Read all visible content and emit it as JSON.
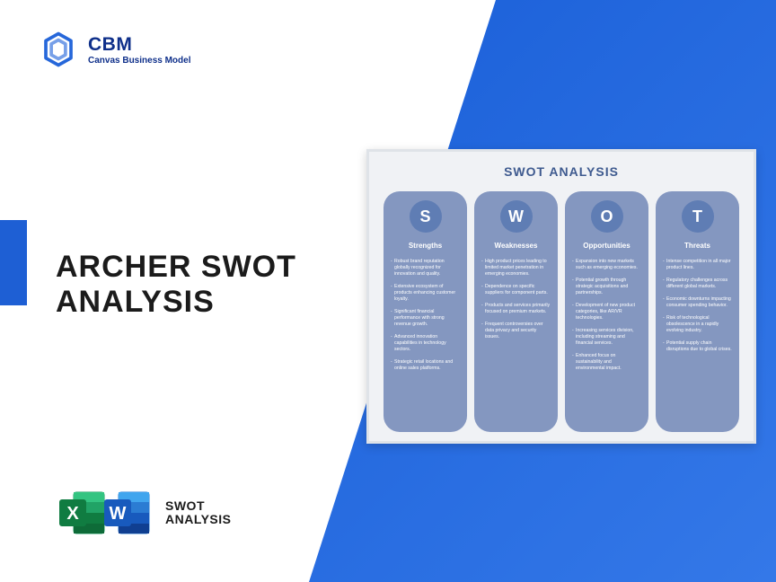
{
  "logo": {
    "main": "CBM",
    "sub": "Canvas Business Model",
    "icon_color": "#1a5fd8"
  },
  "title_line1": "ARCHER SWOT",
  "title_line2": "ANALYSIS",
  "files_label_line1": "SWOT",
  "files_label_line2": "ANALYSIS",
  "excel_icon": {
    "bg": "#1e9e63",
    "fg": "#0d7a47",
    "letter": "X"
  },
  "word_icon": {
    "bg": "#2b7cd3",
    "fg": "#185abd",
    "letter": "W"
  },
  "colors": {
    "diag_start": "#1a5fd8",
    "diag_end": "#3478e8",
    "blue_tab": "#1e5fd4",
    "swot_card_bg": "#f0f2f5",
    "swot_card_border": "#dfe3e8",
    "swot_title_color": "#3e5a8f",
    "swot_col_bg": "#8497c0",
    "swot_badge_bg": "#5f7db4",
    "title_color": "#1b1b1b",
    "logo_text_color": "#0e2f8a"
  },
  "swot": {
    "title": "SWOT ANALYSIS",
    "cols": [
      {
        "letter": "S",
        "heading": "Strengths",
        "items": [
          "Robust brand reputation globally recognized for innovation and quality.",
          "Extensive ecosystem of products enhancing customer loyalty.",
          "Significant financial performance with strong revenue growth.",
          "Advanced innovation capabilities in technology sectors.",
          "Strategic retail locations and online sales platforms."
        ]
      },
      {
        "letter": "W",
        "heading": "Weaknesses",
        "items": [
          "High product prices leading to limited market penetration in emerging economies.",
          "Dependence on specific suppliers for component parts.",
          "Products and services primarily focused on premium markets.",
          "Frequent controversies over data privacy and security issues."
        ]
      },
      {
        "letter": "O",
        "heading": "Opportunities",
        "items": [
          "Expansion into new markets such as emerging economies.",
          "Potential growth through strategic acquisitions and partnerships.",
          "Development of new product categories, like AR/VR technologies.",
          "Increasing services division, including streaming and financial services.",
          "Enhanced focus on sustainability and environmental impact."
        ]
      },
      {
        "letter": "T",
        "heading": "Threats",
        "items": [
          "Intense competition in all major product lines.",
          "Regulatory challenges across different global markets.",
          "Economic downturns impacting consumer spending behavior.",
          "Risk of technological obsolescence in a rapidly evolving industry.",
          "Potential supply chain disruptions due to global crises."
        ]
      }
    ]
  }
}
